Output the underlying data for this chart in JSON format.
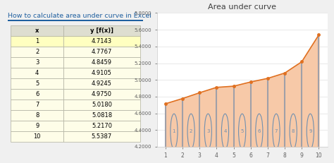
{
  "title_text": "How to calculate area under curve in Excel",
  "x_values": [
    1,
    2,
    3,
    4,
    5,
    6,
    7,
    8,
    9,
    10
  ],
  "y_values": [
    4.7143,
    4.7767,
    4.8459,
    4.9105,
    4.9245,
    4.975,
    5.018,
    5.0818,
    5.217,
    5.5387
  ],
  "col_headers": [
    "x",
    "y [f(x)]"
  ],
  "chart_title": "Area under curve",
  "ylim_min": 4.2,
  "ylim_max": 5.8,
  "yticks": [
    4.2,
    4.4,
    4.6,
    4.8,
    5.0,
    5.2,
    5.4,
    5.6,
    5.8
  ],
  "bg_color": "#FFFFFF",
  "spreadsheet_bg": "#FEFDE8",
  "header_bg": "#DEDED0",
  "area_fill_color": "#F7C9A8",
  "line_color": "#E07020",
  "marker_color": "#E07020",
  "bar_color": "#A0A0A8",
  "circle_edge_color": "#7090B0",
  "circle_text_color": "#7090B0",
  "title_color": "#2060A0",
  "chart_border_color": "#C8C8C8",
  "grid_color": "#E0E0E0",
  "fig_bg": "#F0F0F0",
  "title_underline_color": "#2060A0"
}
